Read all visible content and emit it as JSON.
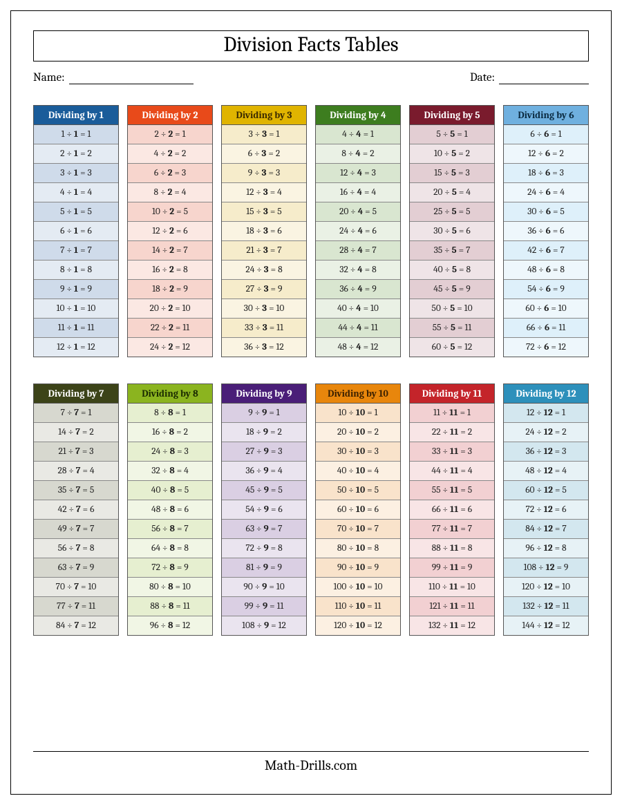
{
  "title": "Division Facts Tables",
  "name_label": "Name:",
  "date_label": "Date:",
  "footer": "Math-Drills.com",
  "header_prefix": "Dividing by ",
  "results_count": 12,
  "columns": [
    {
      "divisor": 1,
      "header_bg": "#1a5c9a",
      "header_fg": "#ffffff",
      "cell_bg_even": "#cfdbea",
      "cell_bg_odd": "#e4ebf3"
    },
    {
      "divisor": 2,
      "header_bg": "#e84a1a",
      "header_fg": "#ffffff",
      "cell_bg_even": "#f7d5cd",
      "cell_bg_odd": "#fbe8e3"
    },
    {
      "divisor": 3,
      "header_bg": "#e0b400",
      "header_fg": "#3a2a00",
      "cell_bg_even": "#f6eccb",
      "cell_bg_odd": "#faf4e2"
    },
    {
      "divisor": 4,
      "header_bg": "#3d7d1f",
      "header_fg": "#ffffff",
      "cell_bg_even": "#d9e6d0",
      "cell_bg_odd": "#eaf1e5"
    },
    {
      "divisor": 5,
      "header_bg": "#7a1b2d",
      "header_fg": "#ffffff",
      "cell_bg_even": "#e3ced3",
      "cell_bg_odd": "#efe4e7"
    },
    {
      "divisor": 6,
      "header_bg": "#6fb0df",
      "header_fg": "#0a2a40",
      "cell_bg_even": "#def0fa",
      "cell_bg_odd": "#eef7fc"
    },
    {
      "divisor": 7,
      "header_bg": "#3c4318",
      "header_fg": "#ffffff",
      "cell_bg_even": "#d7d8cf",
      "cell_bg_odd": "#e9e9e4"
    },
    {
      "divisor": 8,
      "header_bg": "#8bb41f",
      "header_fg": "#1a2a00",
      "cell_bg_even": "#e6efd0",
      "cell_bg_odd": "#f1f6e5"
    },
    {
      "divisor": 9,
      "header_bg": "#4a1e78",
      "header_fg": "#ffffff",
      "cell_bg_even": "#dacfe3",
      "cell_bg_odd": "#eae4ef"
    },
    {
      "divisor": 10,
      "header_bg": "#e8860c",
      "header_fg": "#3a2000",
      "cell_bg_even": "#f9e3cb",
      "cell_bg_odd": "#fcf0e2"
    },
    {
      "divisor": 11,
      "header_bg": "#c4242a",
      "header_fg": "#ffffff",
      "cell_bg_even": "#f2d0d2",
      "cell_bg_odd": "#f8e5e6"
    },
    {
      "divisor": 12,
      "header_bg": "#2d90bb",
      "header_fg": "#ffffff",
      "cell_bg_even": "#d3e7ef",
      "cell_bg_odd": "#e7f2f6"
    }
  ]
}
